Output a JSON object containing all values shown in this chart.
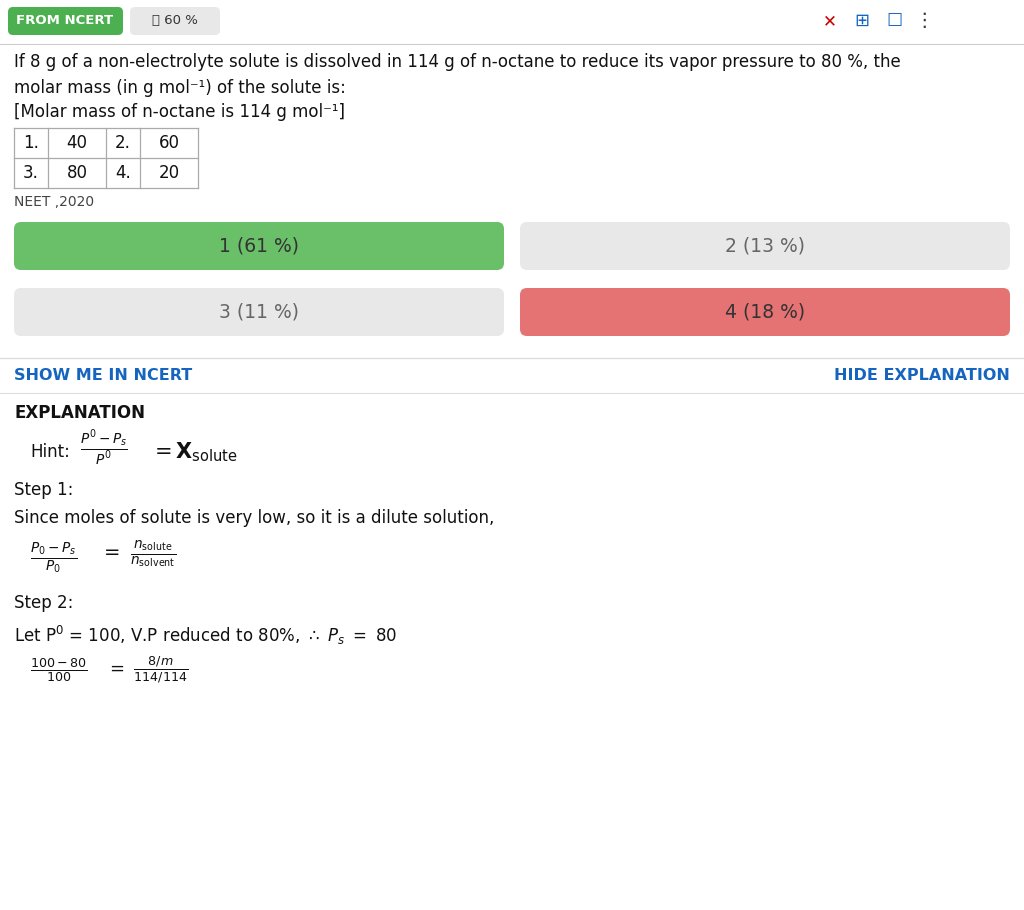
{
  "bg_color": "#ffffff",
  "header_bg": "#4caf50",
  "header_text": "FROM NCERT",
  "header_text_color": "#ffffff",
  "thumb_bg": "#e8e8e8",
  "thumb_text_color": "#333333",
  "question_line1": "If 8 g of a non-electrolyte solute is dissolved in 114 g of n-octane to reduce its vapor pressure to 80 %, the",
  "question_line2": "molar mass (in g mol⁻¹) of the solute is:",
  "molar_mass_note": "[Molar mass of n-octane is 114 g mol⁻¹]",
  "table_rows": [
    [
      "1.",
      "40",
      "2.",
      "60"
    ],
    [
      "3.",
      "80",
      "4.",
      "20"
    ]
  ],
  "source": "NEET ,2020",
  "options": [
    {
      "label": "1 (61 %)",
      "color": "#6abf69",
      "text_color": "#333333"
    },
    {
      "label": "2 (13 %)",
      "color": "#e8e8e8",
      "text_color": "#666666"
    },
    {
      "label": "3 (11 %)",
      "color": "#e8e8e8",
      "text_color": "#666666"
    },
    {
      "label": "4 (18 %)",
      "color": "#e57373",
      "text_color": "#333333"
    }
  ],
  "blue_color": "#1565c0",
  "show_ncert_text": "SHOW ME IN NCERT",
  "hide_exp_text": "HIDE EXPLANATION",
  "explanation_label": "EXPLANATION",
  "step1_label": "Step 1:",
  "step1_text": "Since moles of solute is very low, so it is a dilute solution,",
  "step2_label": "Step 2:",
  "divider_color": "#dddddd",
  "table_line_color": "#aaaaaa"
}
